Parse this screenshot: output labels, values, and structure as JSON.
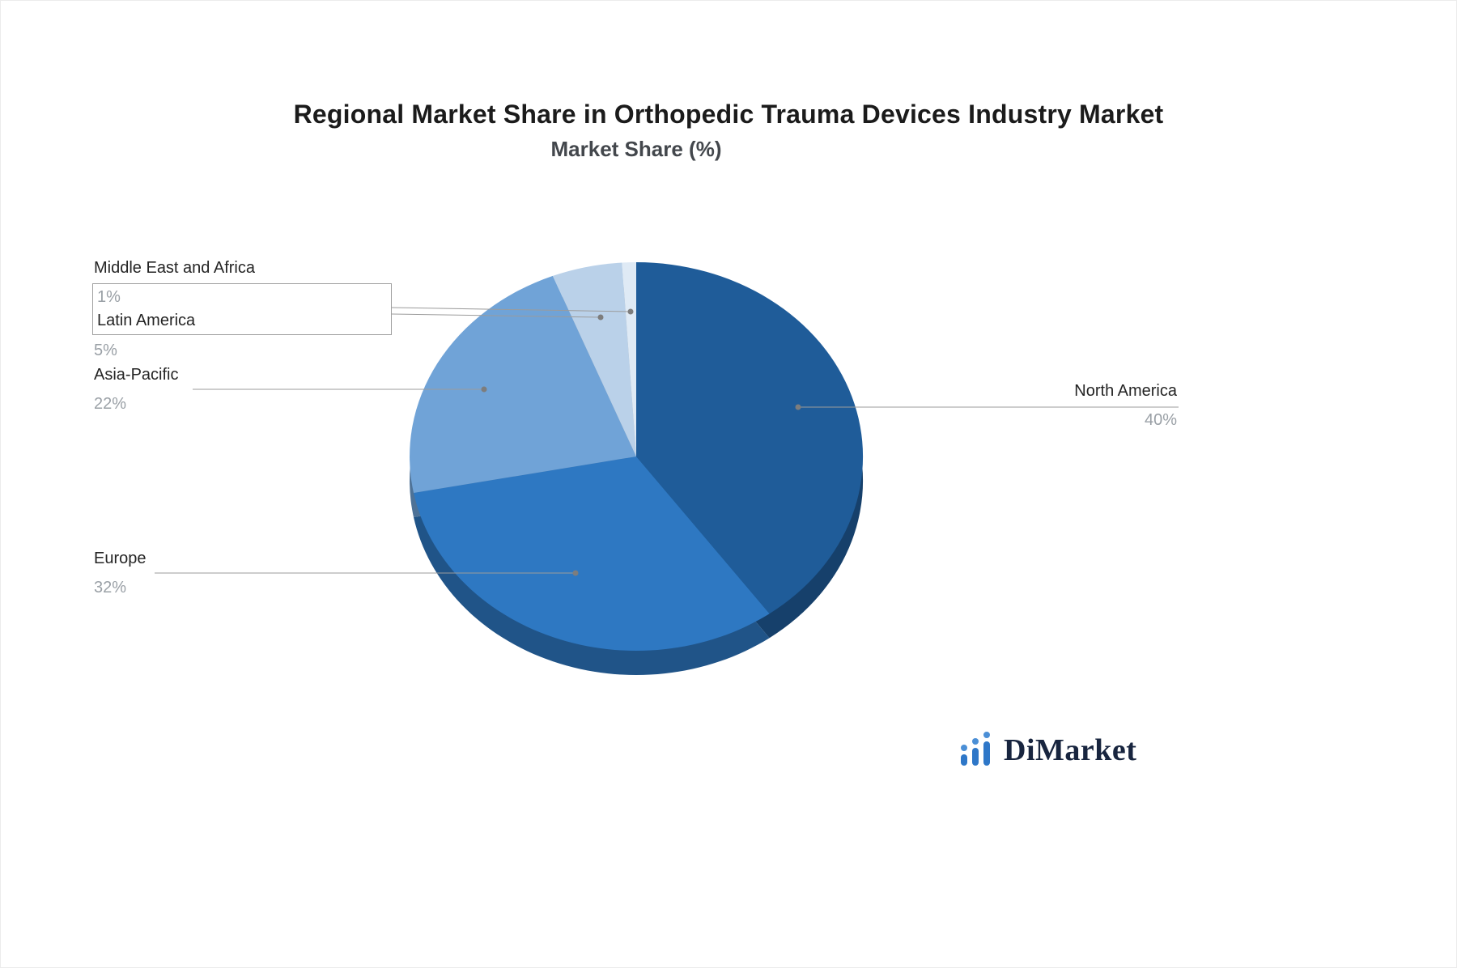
{
  "chart_data": {
    "type": "pie",
    "title": "Regional Market Share in Orthopedic Trauma Devices Industry Market",
    "subtitle": "Market Share (%)",
    "unit": "%",
    "start_angle": "12 o'clock",
    "direction": "clockwise",
    "legend_position": "none",
    "series": [
      {
        "label": "North America",
        "value": 40,
        "percent_label": "40%",
        "color": "#1f5c99",
        "label_side": "right"
      },
      {
        "label": "Europe",
        "value": 32,
        "percent_label": "32%",
        "color": "#2e78c2",
        "label_side": "left"
      },
      {
        "label": "Asia-Pacific",
        "value": 22,
        "percent_label": "22%",
        "color": "#70a3d7",
        "label_side": "left"
      },
      {
        "label": "Latin America",
        "value": 5,
        "percent_label": "5%",
        "color": "#bad1e9",
        "label_side": "left"
      },
      {
        "label": "Middle East and Africa",
        "value": 1,
        "percent_label": "1%",
        "color": "#dfeaf5",
        "label_side": "left"
      }
    ]
  },
  "logo": {
    "icon": "bar-chart-icon",
    "text": "DiMarket",
    "accent_color": "#2e77c8",
    "text_color": "#18253f"
  }
}
